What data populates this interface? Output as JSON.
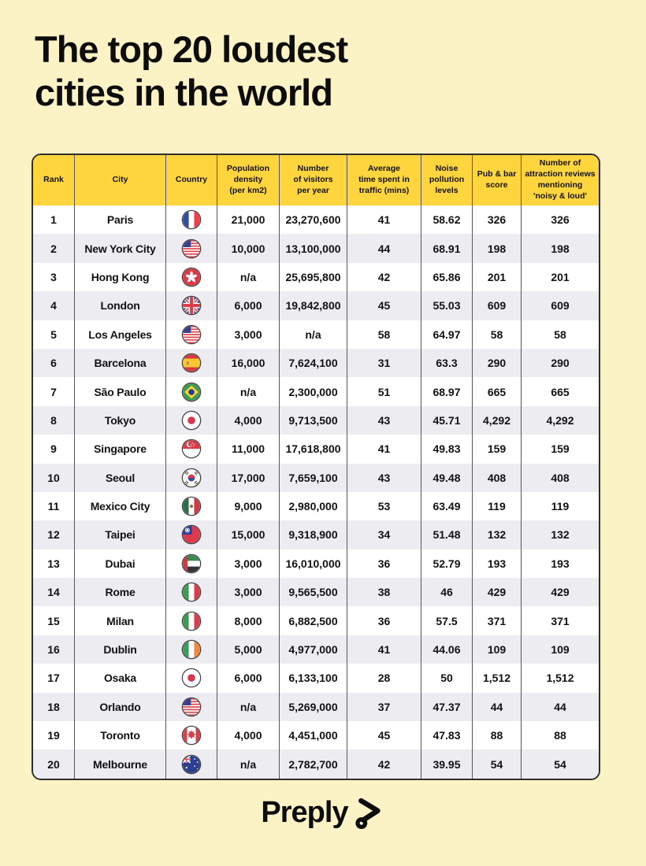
{
  "title_multiline": "The top 20 loudest\ncities in the world",
  "colors": {
    "page_bg": "#FBF2C5",
    "header_bg": "#FFD53E",
    "row_bg": "#FFFFFF",
    "row_alt_bg": "#ECECF1",
    "table_border": "#2E2E30",
    "grid_line": "#55555A",
    "text": "#121212"
  },
  "table": {
    "columns": [
      {
        "key": "rank",
        "label": "Rank"
      },
      {
        "key": "city",
        "label": "City"
      },
      {
        "key": "country_flag",
        "label": "Country"
      },
      {
        "key": "density",
        "label": "Population\ndensity\n(per km2)"
      },
      {
        "key": "visitors",
        "label": "Number\nof visitors\nper year"
      },
      {
        "key": "traffic",
        "label": "Average\ntime spent in\ntraffic (mins)"
      },
      {
        "key": "noise",
        "label": "Noise\npollution\nlevels"
      },
      {
        "key": "pub_bar",
        "label": "Pub & bar\nscore"
      },
      {
        "key": "reviews",
        "label": "Number of\nattraction reviews\nmentioning\n'noisy & loud'"
      }
    ],
    "rows": [
      {
        "rank": "1",
        "city": "Paris",
        "country_flag": "france",
        "density": "21,000",
        "visitors": "23,270,600",
        "traffic": "41",
        "noise": "58.62",
        "pub_bar": "326",
        "reviews": "326"
      },
      {
        "rank": "2",
        "city": "New York City",
        "country_flag": "united-states",
        "density": "10,000",
        "visitors": "13,100,000",
        "traffic": "44",
        "noise": "68.91",
        "pub_bar": "198",
        "reviews": "198"
      },
      {
        "rank": "3",
        "city": "Hong Kong",
        "country_flag": "hong-kong",
        "density": "n/a",
        "visitors": "25,695,800",
        "traffic": "42",
        "noise": "65.86",
        "pub_bar": "201",
        "reviews": "201"
      },
      {
        "rank": "4",
        "city": "London",
        "country_flag": "united-kingdom",
        "density": "6,000",
        "visitors": "19,842,800",
        "traffic": "45",
        "noise": "55.03",
        "pub_bar": "609",
        "reviews": "609"
      },
      {
        "rank": "5",
        "city": "Los Angeles",
        "country_flag": "united-states",
        "density": "3,000",
        "visitors": "n/a",
        "traffic": "58",
        "noise": "64.97",
        "pub_bar": "58",
        "reviews": "58"
      },
      {
        "rank": "6",
        "city": "Barcelona",
        "country_flag": "spain",
        "density": "16,000",
        "visitors": "7,624,100",
        "traffic": "31",
        "noise": "63.3",
        "pub_bar": "290",
        "reviews": "290"
      },
      {
        "rank": "7",
        "city": "São Paulo",
        "country_flag": "brazil",
        "density": "n/a",
        "visitors": "2,300,000",
        "traffic": "51",
        "noise": "68.97",
        "pub_bar": "665",
        "reviews": "665"
      },
      {
        "rank": "8",
        "city": "Tokyo",
        "country_flag": "japan",
        "density": "4,000",
        "visitors": "9,713,500",
        "traffic": "43",
        "noise": "45.71",
        "pub_bar": "4,292",
        "reviews": "4,292"
      },
      {
        "rank": "9",
        "city": "Singapore",
        "country_flag": "singapore",
        "density": "11,000",
        "visitors": "17,618,800",
        "traffic": "41",
        "noise": "49.83",
        "pub_bar": "159",
        "reviews": "159"
      },
      {
        "rank": "10",
        "city": "Seoul",
        "country_flag": "south-korea",
        "density": "17,000",
        "visitors": "7,659,100",
        "traffic": "43",
        "noise": "49.48",
        "pub_bar": "408",
        "reviews": "408"
      },
      {
        "rank": "11",
        "city": "Mexico City",
        "country_flag": "mexico",
        "density": "9,000",
        "visitors": "2,980,000",
        "traffic": "53",
        "noise": "63.49",
        "pub_bar": "119",
        "reviews": "119"
      },
      {
        "rank": "12",
        "city": "Taipei",
        "country_flag": "taiwan",
        "density": "15,000",
        "visitors": "9,318,900",
        "traffic": "34",
        "noise": "51.48",
        "pub_bar": "132",
        "reviews": "132"
      },
      {
        "rank": "13",
        "city": "Dubai",
        "country_flag": "united-arab-emirates",
        "density": "3,000",
        "visitors": "16,010,000",
        "traffic": "36",
        "noise": "52.79",
        "pub_bar": "193",
        "reviews": "193"
      },
      {
        "rank": "14",
        "city": "Rome",
        "country_flag": "italy",
        "density": "3,000",
        "visitors": "9,565,500",
        "traffic": "38",
        "noise": "46",
        "pub_bar": "429",
        "reviews": "429"
      },
      {
        "rank": "15",
        "city": "Milan",
        "country_flag": "italy",
        "density": "8,000",
        "visitors": "6,882,500",
        "traffic": "36",
        "noise": "57.5",
        "pub_bar": "371",
        "reviews": "371"
      },
      {
        "rank": "16",
        "city": "Dublin",
        "country_flag": "ireland",
        "density": "5,000",
        "visitors": "4,977,000",
        "traffic": "41",
        "noise": "44.06",
        "pub_bar": "109",
        "reviews": "109"
      },
      {
        "rank": "17",
        "city": "Osaka",
        "country_flag": "japan",
        "density": "6,000",
        "visitors": "6,133,100",
        "traffic": "28",
        "noise": "50",
        "pub_bar": "1,512",
        "reviews": "1,512"
      },
      {
        "rank": "18",
        "city": "Orlando",
        "country_flag": "united-states",
        "density": "n/a",
        "visitors": "5,269,000",
        "traffic": "37",
        "noise": "47.37",
        "pub_bar": "44",
        "reviews": "44"
      },
      {
        "rank": "19",
        "city": "Toronto",
        "country_flag": "canada",
        "density": "4,000",
        "visitors": "4,451,000",
        "traffic": "45",
        "noise": "47.83",
        "pub_bar": "88",
        "reviews": "88"
      },
      {
        "rank": "20",
        "city": "Melbourne",
        "country_flag": "australia",
        "density": "n/a",
        "visitors": "2,782,700",
        "traffic": "42",
        "noise": "39.95",
        "pub_bar": "54",
        "reviews": "54"
      }
    ]
  },
  "footer": {
    "brand": "Preply"
  }
}
